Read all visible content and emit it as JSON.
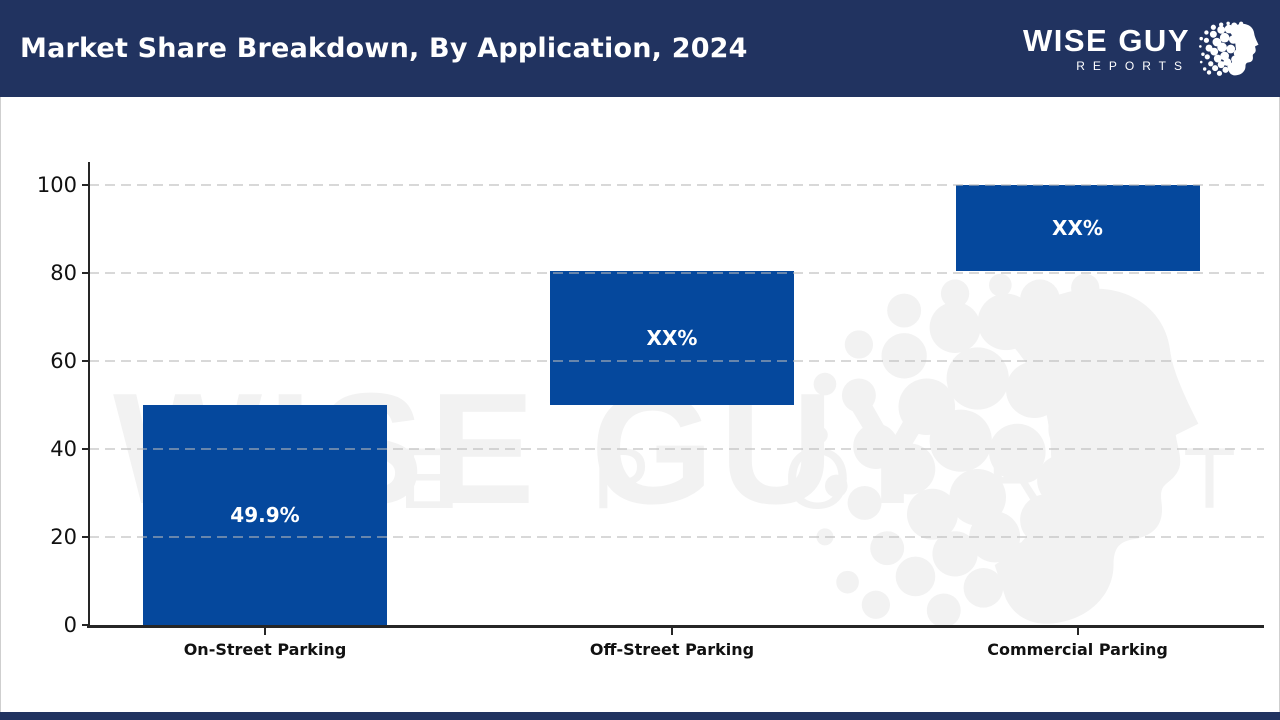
{
  "header": {
    "title": "Market Share Breakdown, By Application, 2024",
    "logo": {
      "line1": "WISE GUY",
      "line2": "REPORTS"
    }
  },
  "watermark": {
    "line1": "WISE GUY",
    "line2": "R E P O R T S"
  },
  "chart_data": {
    "type": "bar",
    "subtype": "floating-waterfall",
    "title": "Market Share Breakdown, By Application, 2024",
    "categories": [
      "On-Street Parking",
      "Off-Street Parking",
      "Commercial Parking"
    ],
    "bars": [
      {
        "category": "On-Street Parking",
        "start": 0,
        "end": 49.9,
        "label": "49.9%"
      },
      {
        "category": "Off-Street Parking",
        "start": 49.9,
        "end": 80.5,
        "label": "XX%"
      },
      {
        "category": "Commercial Parking",
        "start": 80.5,
        "end": 100,
        "label": "XX%"
      }
    ],
    "xlabel": "",
    "ylabel": "",
    "ylim": [
      0,
      105
    ],
    "yticks": [
      0,
      20,
      40,
      60,
      80,
      100
    ],
    "grid": "horizontal-dashed",
    "legend": "none"
  },
  "colors": {
    "header_bg": "#213360",
    "footer_bg": "#213360",
    "bar": "#05489d",
    "axis": "#262626",
    "grid": "#dddddd",
    "watermark": "#f2f2f2",
    "text": "#111111"
  }
}
